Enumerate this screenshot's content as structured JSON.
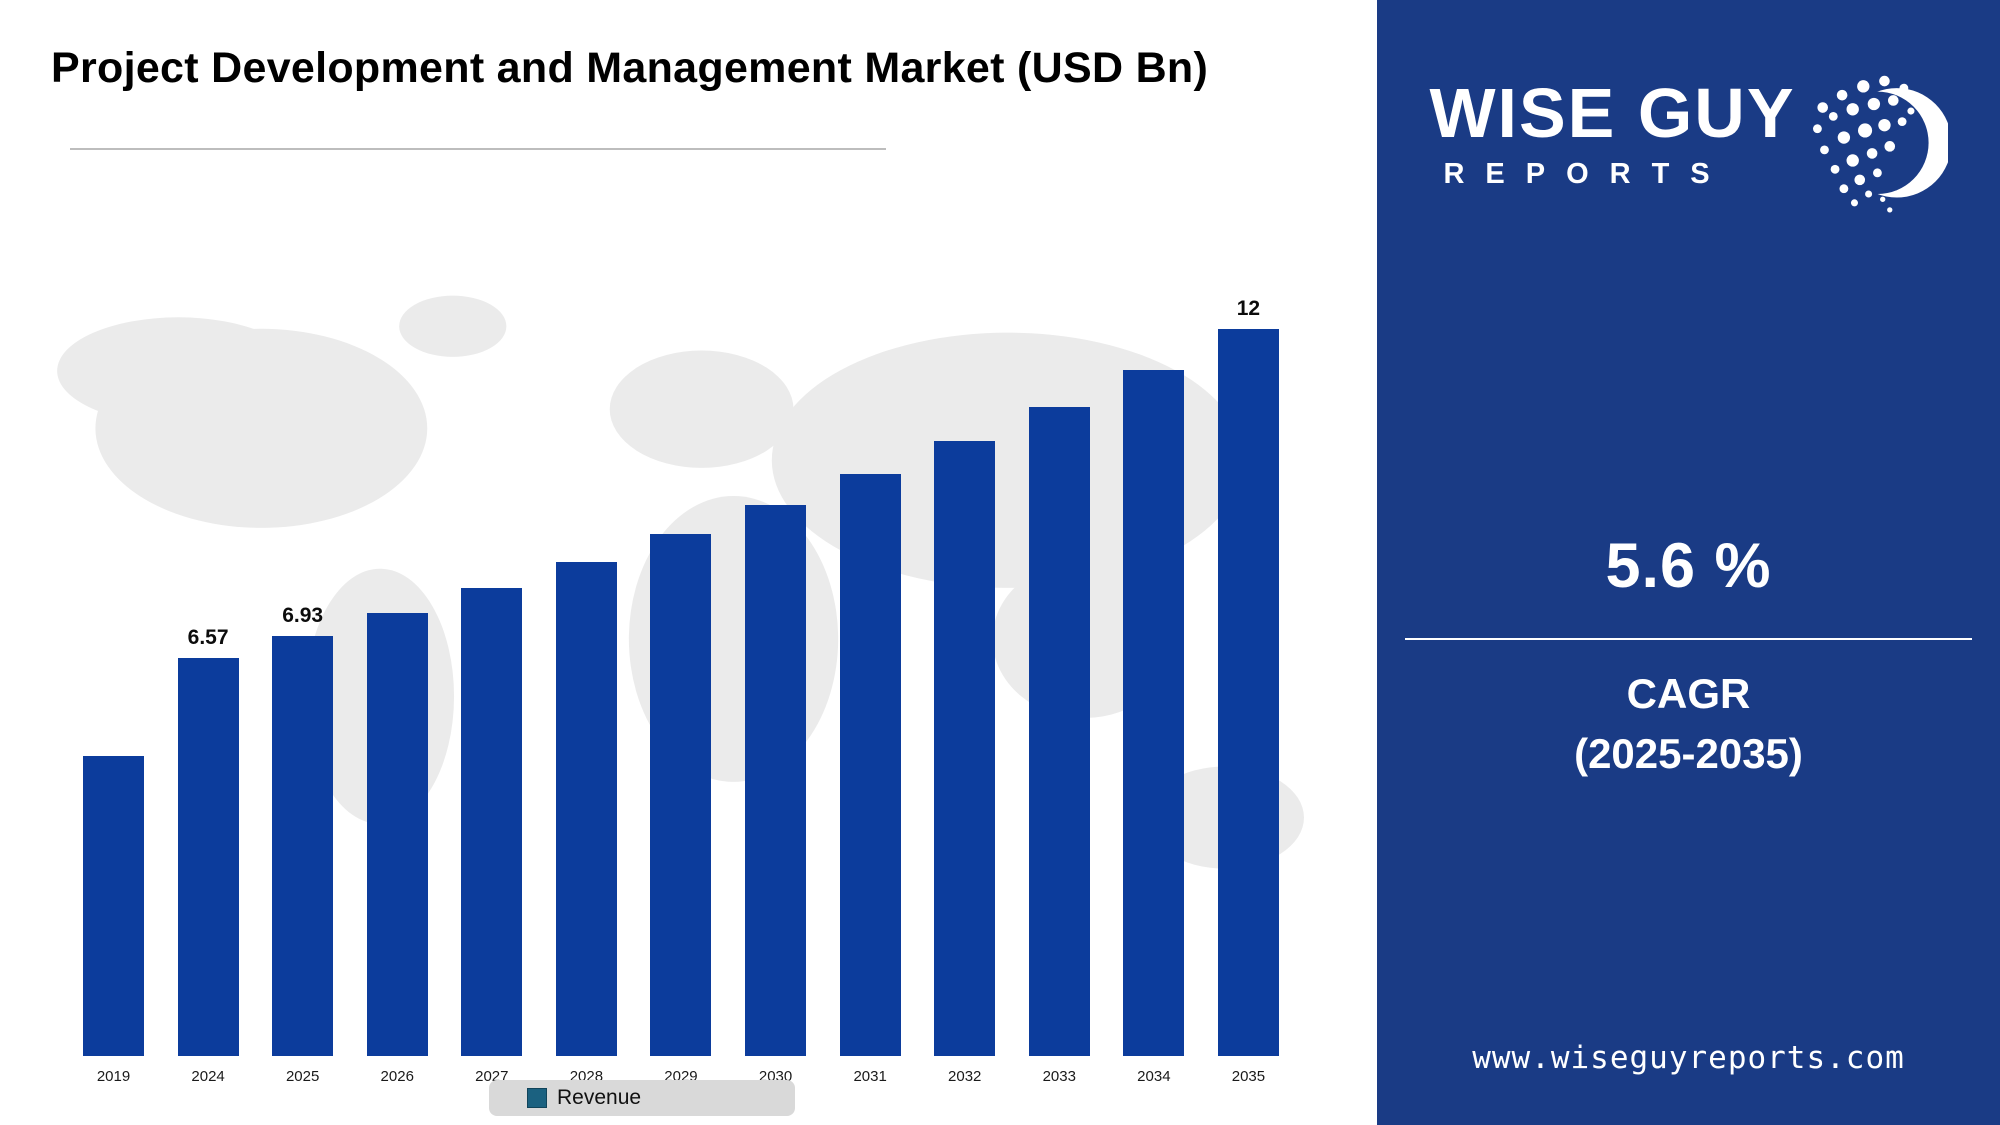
{
  "chart_data": {
    "type": "bar",
    "title": "Project Development and Management Market (USD Bn)",
    "categories": [
      "2019",
      "2024",
      "2025",
      "2026",
      "2027",
      "2028",
      "2029",
      "2030",
      "2031",
      "2032",
      "2033",
      "2034",
      "2035"
    ],
    "values": [
      4.95,
      6.57,
      6.93,
      7.32,
      7.73,
      8.16,
      8.62,
      9.1,
      9.61,
      10.15,
      10.72,
      11.32,
      12
    ],
    "bar_labels": [
      "",
      "6.57",
      "6.93",
      "",
      "",
      "",
      "",
      "",
      "",
      "",
      "",
      "",
      "12"
    ],
    "xlabel": "",
    "ylabel": "",
    "ylim": [
      0,
      12
    ],
    "grid": false,
    "legend": {
      "position": "bottom",
      "entries": [
        "Revenue"
      ]
    }
  },
  "brand": {
    "logo_line1": "WISE GUY",
    "logo_line2": "REPORTS",
    "cagr_value": "5.6 %",
    "cagr_label": "CAGR",
    "cagr_period": "(2025-2035)",
    "website": "www.wiseguyreports.com"
  },
  "colors": {
    "bar": "#0c3c9c",
    "panel_bg": "#1a3b85",
    "legend_swatch": "#1b6180",
    "map_watermark": "#ebebeb",
    "title_rule": "#bdbdbd"
  }
}
